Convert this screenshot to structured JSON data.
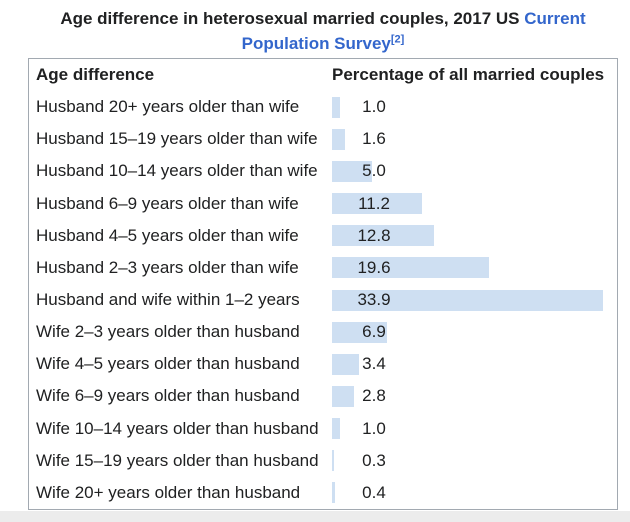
{
  "title": {
    "text": "Age difference in heterosexual married couples, 2017 US",
    "link_line1": "Current",
    "link_line2": "Population Survey",
    "ref": "[2]"
  },
  "table": {
    "header": {
      "col1": "Age difference",
      "col2": "Percentage of all married couples"
    },
    "rows": [
      {
        "label": "Husband 20+ years older than wife",
        "value": 1.0,
        "display": "1.0"
      },
      {
        "label": "Husband 15–19 years older than wife",
        "value": 1.6,
        "display": "1.6"
      },
      {
        "label": "Husband 10–14 years older than wife",
        "value": 5.0,
        "display": "5.0"
      },
      {
        "label": "Husband 6–9 years older than wife",
        "value": 11.2,
        "display": "11.2"
      },
      {
        "label": "Husband 4–5 years older than wife",
        "value": 12.8,
        "display": "12.8"
      },
      {
        "label": "Husband 2–3 years older than wife",
        "value": 19.6,
        "display": "19.6"
      },
      {
        "label": "Husband and wife within 1–2 years",
        "value": 33.9,
        "display": "33.9"
      },
      {
        "label": "Wife 2–3 years older than husband",
        "value": 6.9,
        "display": "6.9"
      },
      {
        "label": "Wife 4–5 years older than husband",
        "value": 3.4,
        "display": "3.4"
      },
      {
        "label": "Wife 6–9 years older than husband",
        "value": 2.8,
        "display": "2.8"
      },
      {
        "label": "Wife 10–14 years older than husband",
        "value": 1.0,
        "display": "1.0"
      },
      {
        "label": "Wife 15–19 years older than husband",
        "value": 0.3,
        "display": "0.3"
      },
      {
        "label": "Wife 20+ years older than husband",
        "value": 0.4,
        "display": "0.4"
      }
    ]
  },
  "colors": {
    "bar": "#cedff2",
    "border": "#a2a9b1",
    "link": "#3366cc",
    "text": "#202122",
    "strip": "#ececec"
  },
  "chart_data": {
    "type": "bar",
    "orientation": "horizontal",
    "title": "Age difference in heterosexual married couples, 2017 US Current Population Survey",
    "xlabel": "Age difference",
    "ylabel": "Percentage of all married couples",
    "categories": [
      "Husband 20+ years older than wife",
      "Husband 15–19 years older than wife",
      "Husband 10–14 years older than wife",
      "Husband 6–9 years older than wife",
      "Husband 4–5 years older than wife",
      "Husband 2–3 years older than wife",
      "Husband and wife within 1–2 years",
      "Wife 2–3 years older than husband",
      "Wife 4–5 years older than husband",
      "Wife 6–9 years older than husband",
      "Wife 10–14 years older than husband",
      "Wife 15–19 years older than husband",
      "Wife 20+ years older than husband"
    ],
    "values": [
      1.0,
      1.6,
      5.0,
      11.2,
      12.8,
      19.6,
      33.9,
      6.9,
      3.4,
      2.8,
      1.0,
      0.3,
      0.4
    ],
    "xlim": [
      0,
      35.8
    ],
    "grid": false,
    "legend": false,
    "bar_color": "#cedff2"
  }
}
